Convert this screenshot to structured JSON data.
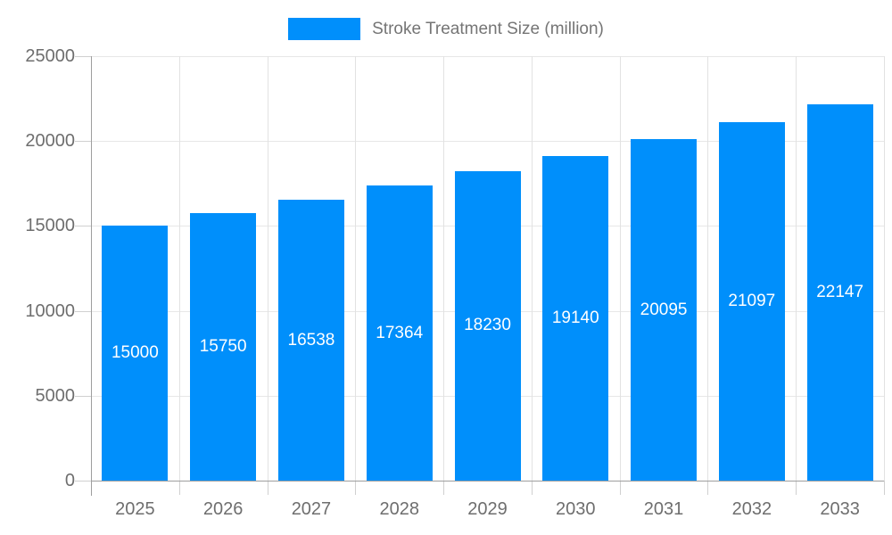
{
  "legend": {
    "label": "Stroke Treatment Size (million)",
    "swatch_color": "#008FFB"
  },
  "chart_data": {
    "type": "bar",
    "title": "Stroke Treatment Size (million)",
    "categories": [
      "2025",
      "2026",
      "2027",
      "2028",
      "2029",
      "2030",
      "2031",
      "2032",
      "2033"
    ],
    "series": [
      {
        "name": "Stroke Treatment Size (million)",
        "values": [
          15000,
          15750,
          16538,
          17364,
          18230,
          19140,
          20095,
          21097,
          22147
        ]
      }
    ],
    "data_labels": [
      "15000",
      "15750",
      "16538",
      "17364",
      "18230",
      "19140",
      "20095",
      "21097",
      "22147"
    ],
    "xlabel": "",
    "ylabel": "",
    "ylim": [
      0,
      25000
    ],
    "yticks": [
      0,
      5000,
      10000,
      15000,
      20000,
      25000
    ],
    "grid": "horizontal-and-vertical",
    "legend_position": "top-center",
    "bar_color": "#008FFB",
    "data_label_color": "#ffffff",
    "axis_text_color": "#6E6E6E",
    "legend_text_color": "#757575",
    "gridline_color": "#E7E7E7",
    "axis_line_color": "#9E9E9E"
  }
}
